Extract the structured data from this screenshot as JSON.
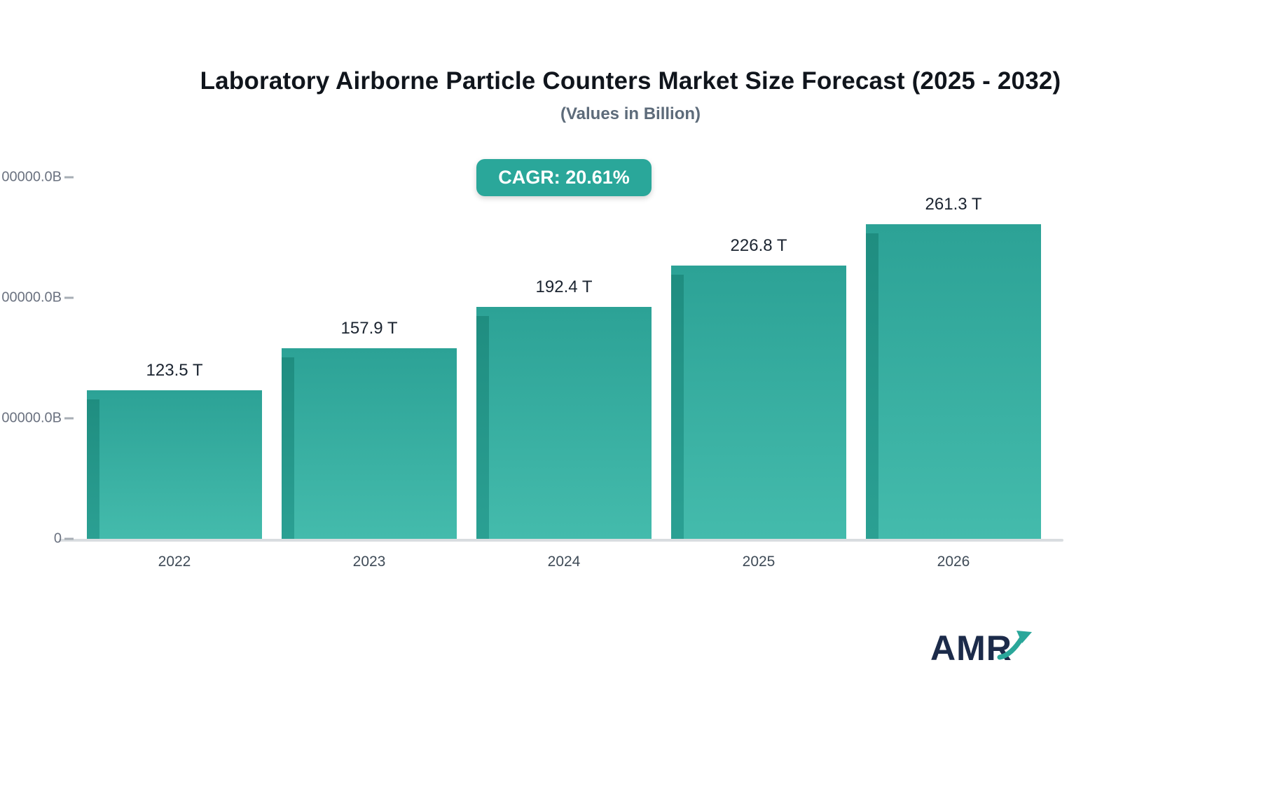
{
  "page": {
    "title": "Laboratory Airborne Particle Counters Market Size Forecast (2025 - 2032)",
    "subtitle": "(Values in Billion)",
    "cagr_badge": "CAGR: 20.61%",
    "logo_text": "AMR"
  },
  "colors": {
    "bar_top": "#2CA296",
    "bar_bottom": "#44BBAC",
    "bar_side_face": "#1F8D80",
    "badge_bg": "#2AA79A",
    "title_text": "#10151C",
    "subtitle_text": "#5D6B7A",
    "axis_text": "#6B7280",
    "value_text": "#1B2430",
    "axis_line": "#D9DDE0",
    "logo_text": "#1C2B4A",
    "logo_arrow": "#2AA79A"
  },
  "chart_data": {
    "type": "bar",
    "title": "Laboratory Airborne Particle Counters Market Size Forecast (2025 - 2032)",
    "subtitle": "(Values in Billion)",
    "unit": "Billion",
    "cagr": "20.61%",
    "categories": [
      "2022",
      "2023",
      "2024",
      "2025",
      "2026"
    ],
    "values": [
      123500,
      157900,
      192400,
      226800,
      261300
    ],
    "bar_labels": [
      "123.5 T",
      "157.9 T",
      "192.4 T",
      "226.8 T",
      "261.3 T"
    ],
    "xlabel": "",
    "ylabel": "",
    "ylim": [
      0,
      300000
    ],
    "y_tick_labels_displayed": [
      "0",
      "00000.0B",
      "00000.0B",
      "00000.0B"
    ],
    "grid": false,
    "legend": "none"
  }
}
